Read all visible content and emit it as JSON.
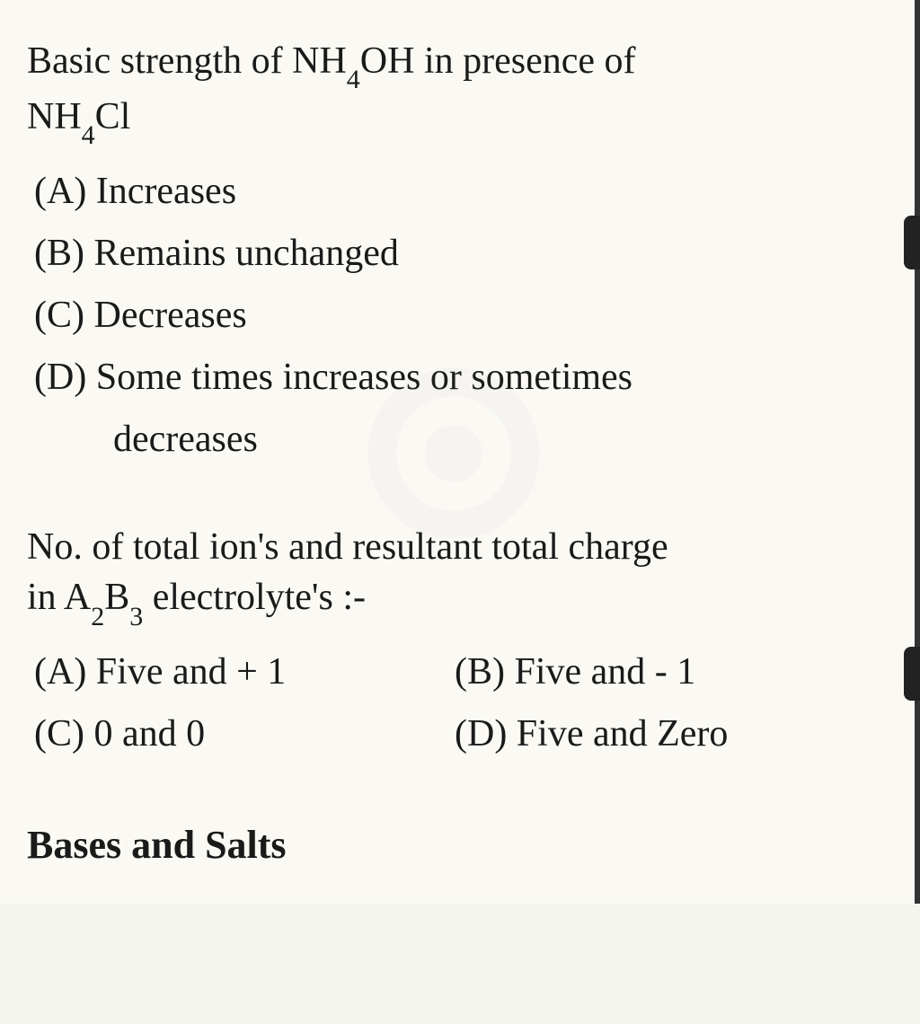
{
  "question1": {
    "stem_prefix": "Basic strength of NH",
    "stem_sub1": "4",
    "stem_mid": "OH in presence of",
    "stem_line2_prefix": "NH",
    "stem_sub2": "4",
    "stem_line2_suffix": "Cl",
    "options": {
      "a": "(A) Increases",
      "b": "(B) Remains unchanged",
      "c": "(C) Decreases",
      "d_line1": "(D) Some times increases or sometimes",
      "d_line2": "decreases"
    }
  },
  "question2": {
    "stem_line1": "No. of total ion's and resultant total charge",
    "stem_line2_prefix": "in A",
    "stem_sub1": "2",
    "stem_line2_mid": "B",
    "stem_sub2": "3",
    "stem_line2_suffix": " electrolyte's :-",
    "options": {
      "a": "(A) Five and + 1",
      "b": "(B) Five and - 1",
      "c": "(C) 0 and 0",
      "d": "(D) Five and Zero"
    }
  },
  "section_title": "Bases and Salts",
  "style": {
    "background": "#faf9f4",
    "text_color": "#1a1a1a",
    "font_size_body": 42,
    "font_size_sub": 30,
    "font_size_title": 44
  }
}
